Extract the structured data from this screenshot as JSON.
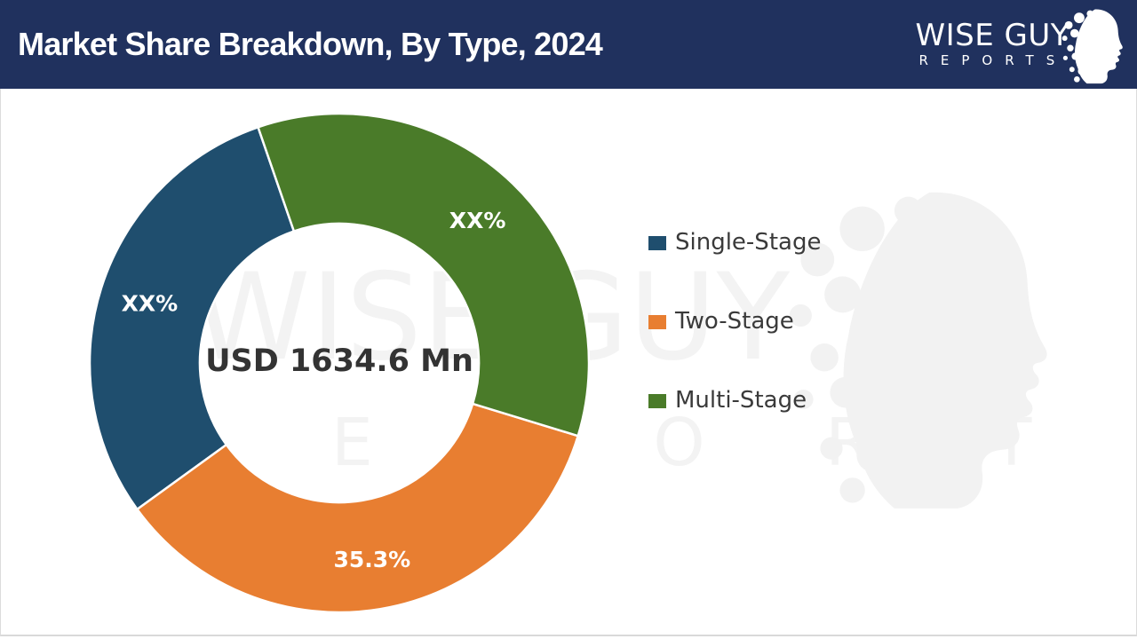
{
  "header": {
    "title": "Market Share Breakdown, By Type, 2024",
    "logo": {
      "name": "WISE GUY",
      "tagline": "REPORTS"
    }
  },
  "watermark": {
    "line1": "WISE GUY",
    "line2": "R E P O R T S"
  },
  "chart_data": {
    "type": "pie",
    "subtype": "donut",
    "title": "Market Share Breakdown, By Type, 2024",
    "center_label": "USD 1634.6 Mn",
    "unit": "percent of market share",
    "start_angle_deg": 109,
    "direction": "counterclockwise",
    "legend_position": "right",
    "inner_radius_ratio": 0.56,
    "segments": [
      {
        "name": "Single-Stage",
        "value": 29.7,
        "label": "XX%",
        "color": "#1F4E6E"
      },
      {
        "name": "Two-Stage",
        "value": 35.3,
        "label": "35.3%",
        "color": "#E87E31"
      },
      {
        "name": "Multi-Stage",
        "value": 35.0,
        "label": "XX%",
        "color": "#4A7B29"
      }
    ],
    "colors": {
      "header_bar": "#20315E",
      "center_text": "#333333",
      "legend_text": "#3a3a3a"
    }
  }
}
